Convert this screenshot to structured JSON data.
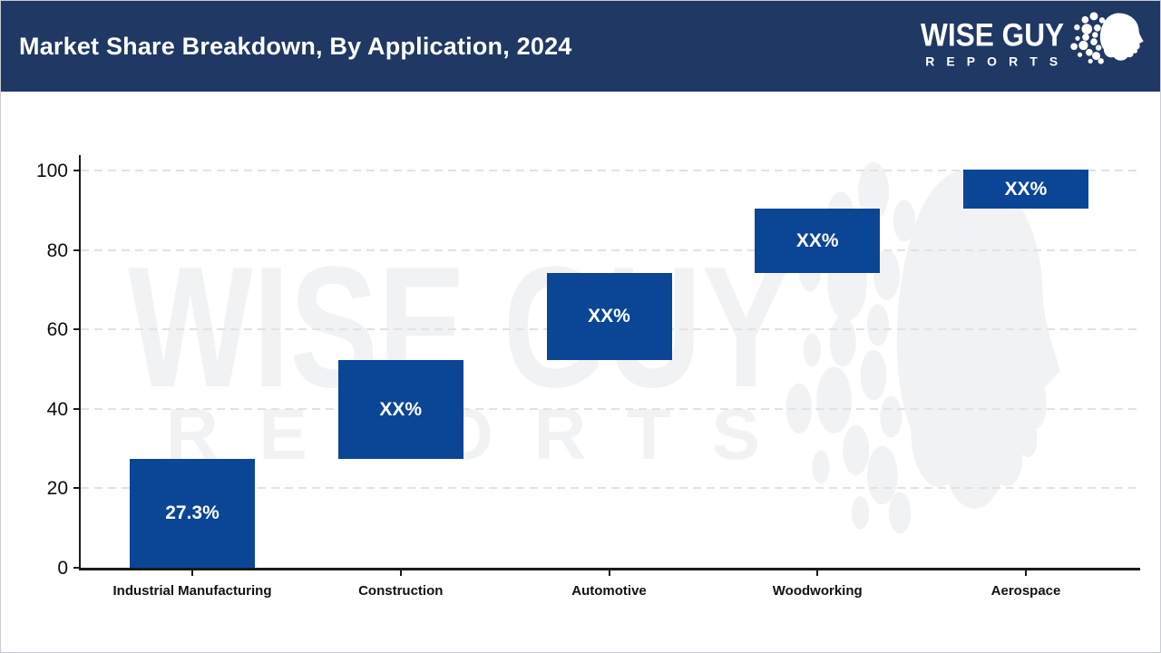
{
  "header": {
    "title": "Market Share Breakdown, By Application, 2024",
    "bg_color": "#1f3864",
    "logo": {
      "line1": "WISE GUY",
      "line2": "REPORTS"
    }
  },
  "watermark": {
    "line1": "WISE GUY",
    "line2": "REPORTS"
  },
  "chart_data": {
    "type": "bar",
    "subtype": "waterfall",
    "title": "Market Share Breakdown, By Application, 2024",
    "categories": [
      "Industrial Manufacturing",
      "Construction",
      "Automotive",
      "Woodworking",
      "Aerospace"
    ],
    "series": [
      {
        "name": "Market Share %",
        "starts": [
          0,
          27.3,
          52.3,
          74.3,
          90.3
        ],
        "values": [
          27.3,
          25.0,
          22.0,
          16.0,
          10.0
        ]
      }
    ],
    "bar_labels": [
      "27.3%",
      "XX%",
      "XX%",
      "XX%",
      "XX%"
    ],
    "xlabel": "",
    "ylabel": "",
    "ylim": [
      0,
      105
    ],
    "yticks": [
      0,
      20,
      40,
      60,
      80,
      100
    ],
    "grid": "horizontal-dashed",
    "legend": "none",
    "bar_color": "#0b4596",
    "bar_label_color": "#ffffff",
    "gridline_color": "#e2e2e5"
  }
}
